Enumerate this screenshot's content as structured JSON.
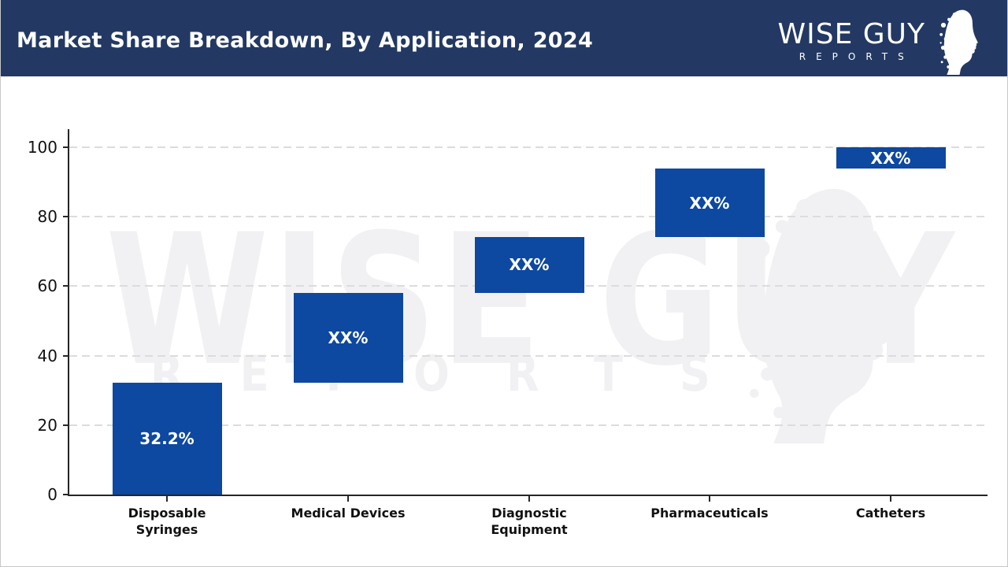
{
  "header": {
    "title": "Market Share Breakdown, By Application, 2024",
    "logo": {
      "line1": "WISE GUY",
      "line2": "REPORTS"
    }
  },
  "watermark": {
    "line1": "WISE GUY",
    "line2": "REPORTS"
  },
  "colors": {
    "header_bg": "#233963",
    "bar": "#0d48a1",
    "bar_label": "#ffffff",
    "grid": "#dcdcdc",
    "axis": "#262626",
    "tick_label": "#111111",
    "watermark": "#f1f1f4"
  },
  "chart_data": {
    "type": "bar",
    "subtype": "waterfall",
    "title": "Market Share Breakdown, By Application, 2024",
    "categories": [
      "Disposable Syringes",
      "Medical Devices",
      "Diagnostic Equipment",
      "Pharmaceuticals",
      "Catheters"
    ],
    "segments": [
      {
        "category": "Disposable Syringes",
        "start": 0,
        "end": 32.2,
        "label": "32.2%"
      },
      {
        "category": "Medical Devices",
        "start": 32.2,
        "end": 58.0,
        "label": "XX%"
      },
      {
        "category": "Diagnostic Equipment",
        "start": 58.0,
        "end": 74.2,
        "label": "XX%"
      },
      {
        "category": "Pharmaceuticals",
        "start": 74.2,
        "end": 93.8,
        "label": "XX%"
      },
      {
        "category": "Catheters",
        "start": 93.8,
        "end": 100,
        "label": "XX%"
      }
    ],
    "xlabel": "",
    "ylabel": "",
    "unit": "%",
    "ylim": [
      0,
      100
    ],
    "yticks": [
      0,
      20,
      40,
      60,
      80,
      100
    ],
    "grid": "horizontal-dashed",
    "legend": "none"
  }
}
